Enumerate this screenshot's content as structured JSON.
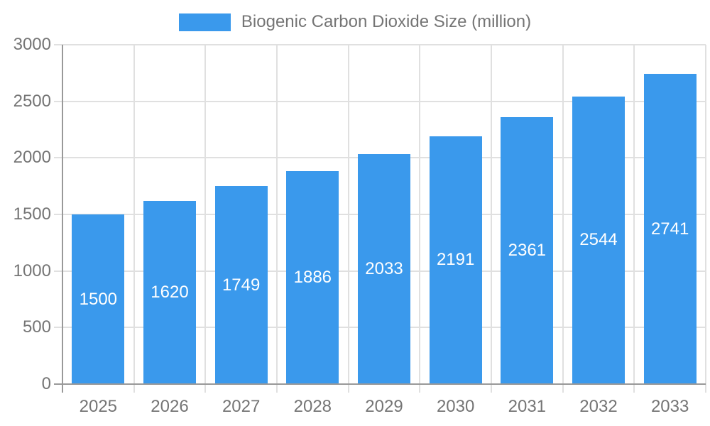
{
  "chart_data": {
    "type": "bar",
    "legend_label": "Biogenic Carbon Dioxide Size (million)",
    "legend_position": "top",
    "categories": [
      "2025",
      "2026",
      "2027",
      "2028",
      "2029",
      "2030",
      "2031",
      "2032",
      "2033"
    ],
    "values": [
      1500,
      1620,
      1749,
      1886,
      2033,
      2191,
      2361,
      2544,
      2741
    ],
    "title": "",
    "xlabel": "",
    "ylabel": "",
    "ylim": [
      0,
      3000
    ],
    "ytick_step": 500,
    "grid": "on",
    "colors": {
      "bar": "#3A99EC",
      "bar_label": "#FFFFFF",
      "grid": "#E0E0E0",
      "axis": "#999999",
      "tick_text": "#757575",
      "legend_text": "#757575",
      "background": "#FFFFFF"
    }
  }
}
